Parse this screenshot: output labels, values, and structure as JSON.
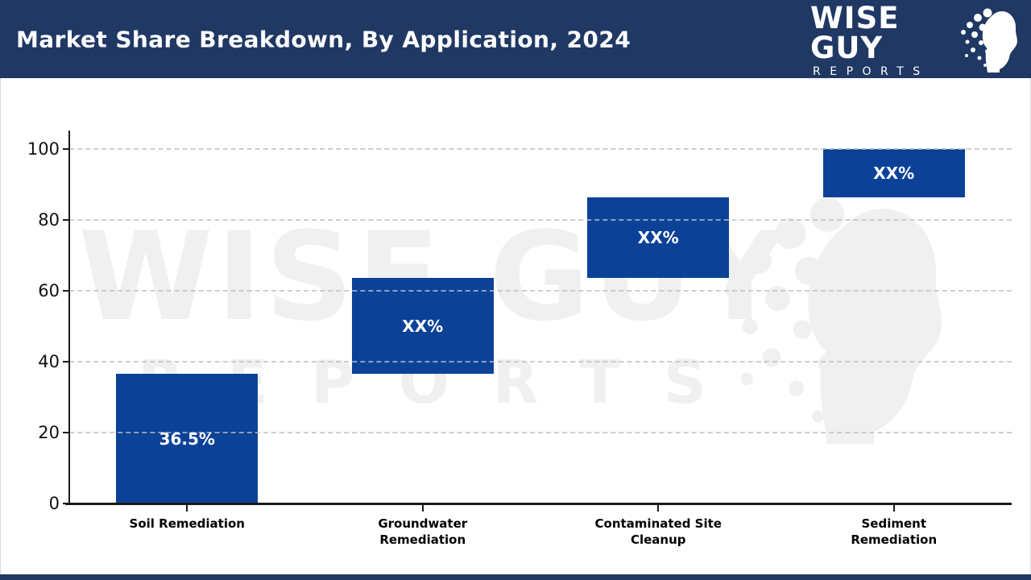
{
  "header": {
    "title": "Market Share Breakdown, By Application, 2024",
    "bg_color": "#1f3864",
    "logo": {
      "line1": "WISE GUY",
      "line2": "REPORTS"
    }
  },
  "watermark": {
    "line1": "WISE GUY",
    "line2": "REPORTS",
    "color": "#f0f0f0"
  },
  "chart_data": {
    "type": "bar",
    "subtype": "waterfall-floating-bars",
    "title": "Market Share Breakdown, By Application, 2024",
    "categories": [
      "Soil Remediation",
      "Groundwater Remediation",
      "Contaminated Site Cleanup",
      "Sediment Remediation"
    ],
    "segments": [
      {
        "start": 0,
        "end": 36.5,
        "label": "36.5%"
      },
      {
        "start": 36.5,
        "end": 63.6,
        "label": "XX%"
      },
      {
        "start": 63.6,
        "end": 86.4,
        "label": "XX%"
      },
      {
        "start": 86.4,
        "end": 100,
        "label": "XX%"
      }
    ],
    "y_ticks": [
      0,
      20,
      40,
      60,
      80,
      100
    ],
    "ylim": [
      0,
      105
    ],
    "xlabel": "",
    "ylabel": "",
    "grid": "horizontal-dashed",
    "legend": "none",
    "bar_color": "#0b4298",
    "bar_label_color": "#ffffff",
    "axis_color": "#1a1a1a"
  }
}
